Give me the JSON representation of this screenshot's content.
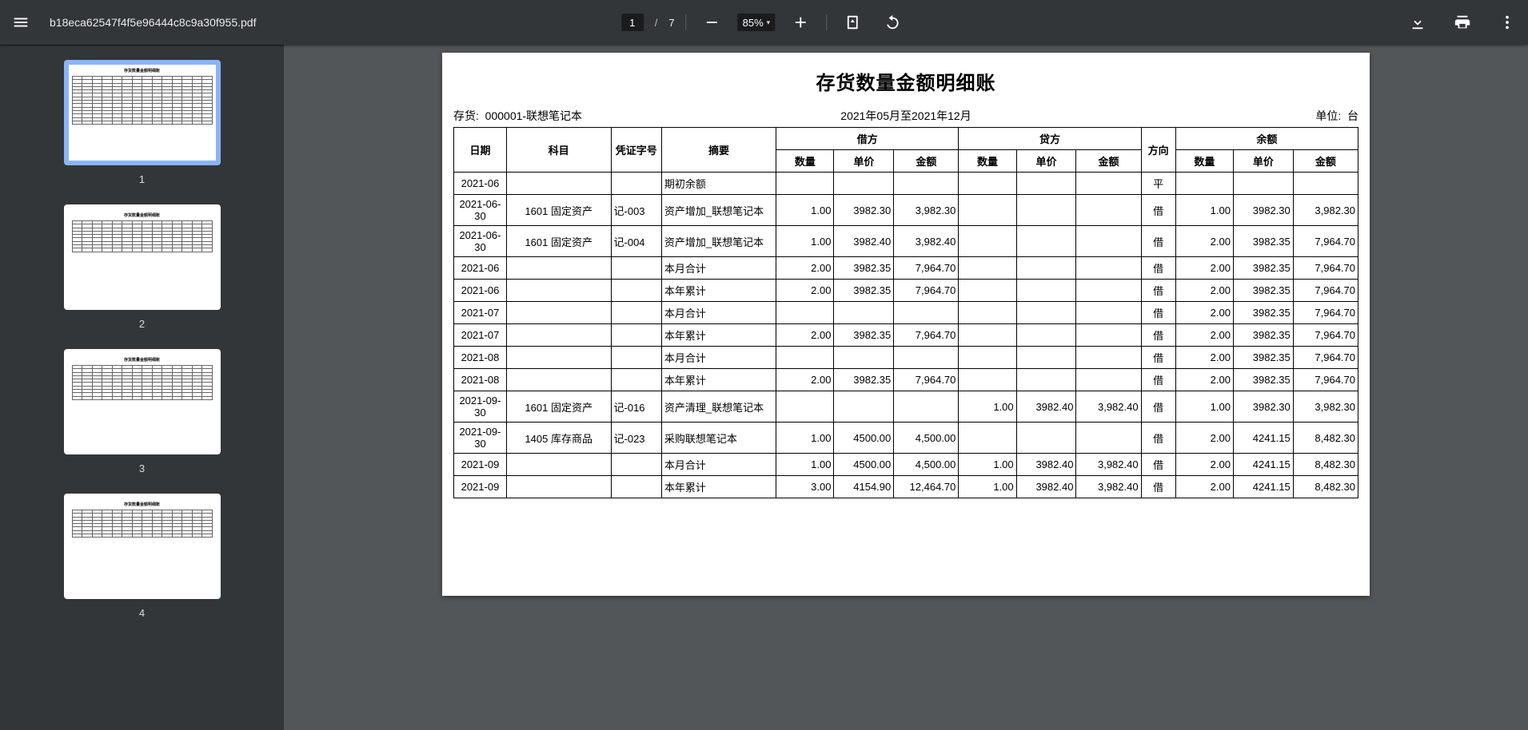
{
  "colors": {
    "toolbar_bg": "#323639",
    "viewer_bg": "#525659",
    "page_bg": "#ffffff",
    "selected_thumb_border": "#8ab4f8",
    "input_bg": "#191b1c",
    "text_light": "#ffffff",
    "grid_color": "#000000"
  },
  "toolbar": {
    "filename": "b18eca62547f4f5e96444c8c9a30f955.pdf",
    "page_current": "1",
    "page_sep": "/",
    "page_total": "7",
    "zoom_label": "85%"
  },
  "sidebar": {
    "thumbs": [
      {
        "n": "1",
        "selected": true,
        "rows": 14
      },
      {
        "n": "2",
        "selected": false,
        "rows": 9
      },
      {
        "n": "3",
        "selected": false,
        "rows": 10
      },
      {
        "n": "4",
        "selected": false,
        "rows": 8
      }
    ],
    "mini_title": "存货数量金额明细账"
  },
  "doc": {
    "title": "存货数量金额明细账",
    "inv_label": "存货:",
    "inv_value": "000001-联想笔记本",
    "period": "2021年05月至2021年12月",
    "unit_label": "单位:",
    "unit_value": "台",
    "headers": {
      "date": "日期",
      "subject": "科目",
      "vno": "凭证字号",
      "summary": "摘要",
      "debit": "借方",
      "credit": "贷方",
      "dir": "方向",
      "balance": "余额",
      "qty": "数量",
      "price": "单价",
      "amount": "金额"
    },
    "rows": [
      {
        "date": "2021-06",
        "subject": "",
        "vno": "",
        "summary": "期初余额",
        "dq": "",
        "dp": "",
        "da": "",
        "cq": "",
        "cp": "",
        "ca": "",
        "dir": "平",
        "bq": "",
        "bp": "",
        "ba": ""
      },
      {
        "date": "2021-06-30",
        "subject": "1601 固定资产",
        "vno": "记-003",
        "summary": "资产增加_联想笔记本",
        "dq": "1.00",
        "dp": "3982.30",
        "da": "3,982.30",
        "cq": "",
        "cp": "",
        "ca": "",
        "dir": "借",
        "bq": "1.00",
        "bp": "3982.30",
        "ba": "3,982.30"
      },
      {
        "date": "2021-06-30",
        "subject": "1601 固定资产",
        "vno": "记-004",
        "summary": "资产增加_联想笔记本",
        "dq": "1.00",
        "dp": "3982.40",
        "da": "3,982.40",
        "cq": "",
        "cp": "",
        "ca": "",
        "dir": "借",
        "bq": "2.00",
        "bp": "3982.35",
        "ba": "7,964.70"
      },
      {
        "date": "2021-06",
        "subject": "",
        "vno": "",
        "summary": "本月合计",
        "dq": "2.00",
        "dp": "3982.35",
        "da": "7,964.70",
        "cq": "",
        "cp": "",
        "ca": "",
        "dir": "借",
        "bq": "2.00",
        "bp": "3982.35",
        "ba": "7,964.70"
      },
      {
        "date": "2021-06",
        "subject": "",
        "vno": "",
        "summary": "本年累计",
        "dq": "2.00",
        "dp": "3982.35",
        "da": "7,964.70",
        "cq": "",
        "cp": "",
        "ca": "",
        "dir": "借",
        "bq": "2.00",
        "bp": "3982.35",
        "ba": "7,964.70"
      },
      {
        "date": "2021-07",
        "subject": "",
        "vno": "",
        "summary": "本月合计",
        "dq": "",
        "dp": "",
        "da": "",
        "cq": "",
        "cp": "",
        "ca": "",
        "dir": "借",
        "bq": "2.00",
        "bp": "3982.35",
        "ba": "7,964.70"
      },
      {
        "date": "2021-07",
        "subject": "",
        "vno": "",
        "summary": "本年累计",
        "dq": "2.00",
        "dp": "3982.35",
        "da": "7,964.70",
        "cq": "",
        "cp": "",
        "ca": "",
        "dir": "借",
        "bq": "2.00",
        "bp": "3982.35",
        "ba": "7,964.70"
      },
      {
        "date": "2021-08",
        "subject": "",
        "vno": "",
        "summary": "本月合计",
        "dq": "",
        "dp": "",
        "da": "",
        "cq": "",
        "cp": "",
        "ca": "",
        "dir": "借",
        "bq": "2.00",
        "bp": "3982.35",
        "ba": "7,964.70"
      },
      {
        "date": "2021-08",
        "subject": "",
        "vno": "",
        "summary": "本年累计",
        "dq": "2.00",
        "dp": "3982.35",
        "da": "7,964.70",
        "cq": "",
        "cp": "",
        "ca": "",
        "dir": "借",
        "bq": "2.00",
        "bp": "3982.35",
        "ba": "7,964.70"
      },
      {
        "date": "2021-09-30",
        "subject": "1601 固定资产",
        "vno": "记-016",
        "summary": "资产清理_联想笔记本",
        "dq": "",
        "dp": "",
        "da": "",
        "cq": "1.00",
        "cp": "3982.40",
        "ca": "3,982.40",
        "dir": "借",
        "bq": "1.00",
        "bp": "3982.30",
        "ba": "3,982.30"
      },
      {
        "date": "2021-09-30",
        "subject": "1405 库存商品",
        "vno": "记-023",
        "summary": "采购联想笔记本",
        "dq": "1.00",
        "dp": "4500.00",
        "da": "4,500.00",
        "cq": "",
        "cp": "",
        "ca": "",
        "dir": "借",
        "bq": "2.00",
        "bp": "4241.15",
        "ba": "8,482.30"
      },
      {
        "date": "2021-09",
        "subject": "",
        "vno": "",
        "summary": "本月合计",
        "dq": "1.00",
        "dp": "4500.00",
        "da": "4,500.00",
        "cq": "1.00",
        "cp": "3982.40",
        "ca": "3,982.40",
        "dir": "借",
        "bq": "2.00",
        "bp": "4241.15",
        "ba": "8,482.30"
      },
      {
        "date": "2021-09",
        "subject": "",
        "vno": "",
        "summary": "本年累计",
        "dq": "3.00",
        "dp": "4154.90",
        "da": "12,464.70",
        "cq": "1.00",
        "cp": "3982.40",
        "ca": "3,982.40",
        "dir": "借",
        "bq": "2.00",
        "bp": "4241.15",
        "ba": "8,482.30"
      }
    ]
  }
}
